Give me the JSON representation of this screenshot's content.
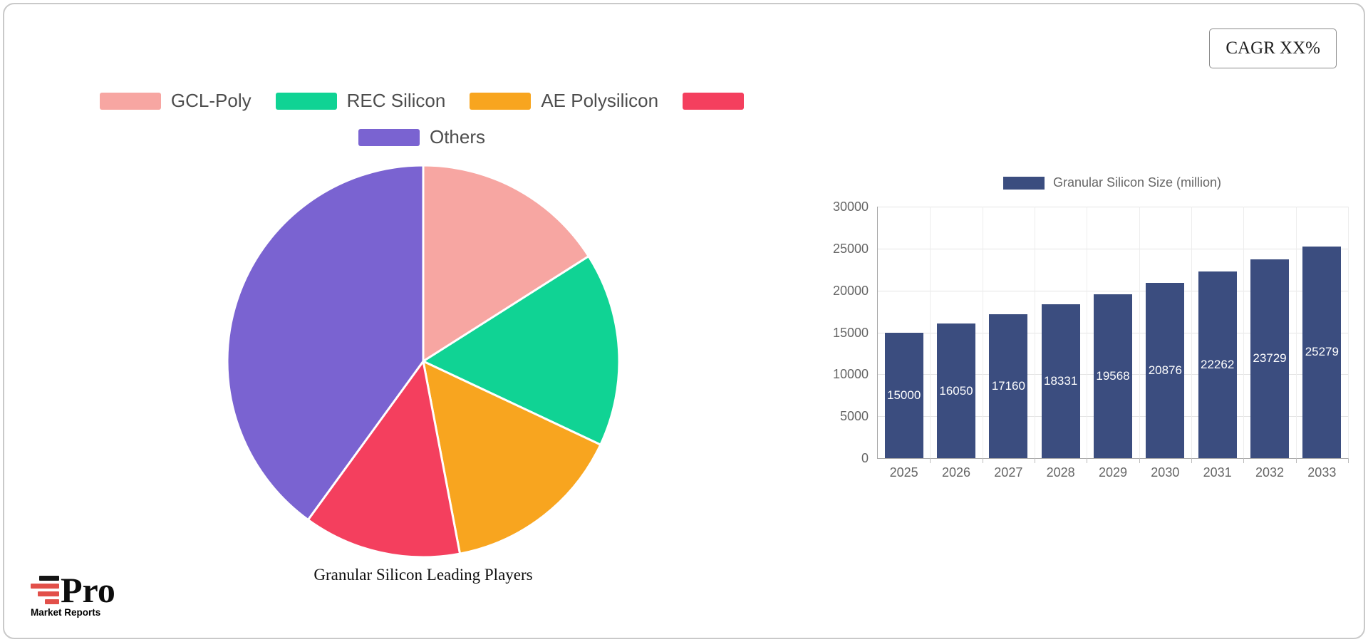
{
  "cagr": {
    "label": "CAGR XX%"
  },
  "logo": {
    "title": "Pro",
    "subtitle": "Market Reports"
  },
  "chart_data": [
    {
      "type": "pie",
      "title": "Granular Silicon Leading Players",
      "legend_position": "top",
      "slices": [
        {
          "label": "GCL-Poly",
          "value": 16,
          "color": "#f7a6a2"
        },
        {
          "label": "REC Silicon",
          "value": 16,
          "color": "#10d394"
        },
        {
          "label": "AE Polysilicon",
          "value": 15,
          "color": "#f8a51f"
        },
        {
          "label": "",
          "value": 13,
          "color": "#f43f5e"
        },
        {
          "label": "Others",
          "value": 40,
          "color": "#7a63d1"
        }
      ]
    },
    {
      "type": "bar",
      "series": [
        {
          "name": "Granular Silicon Size (million)",
          "values": [
            15000,
            16050,
            17160,
            18331,
            19568,
            20876,
            22262,
            23729,
            25279
          ]
        }
      ],
      "categories": [
        "2025",
        "2026",
        "2027",
        "2028",
        "2029",
        "2030",
        "2031",
        "2032",
        "2033"
      ],
      "ylim": [
        0,
        30000
      ],
      "yticks": [
        0,
        5000,
        10000,
        15000,
        20000,
        25000,
        30000
      ],
      "bar_color": "#3b4d7f",
      "value_label_color": "#ffffff",
      "grid": true,
      "legend_position": "top"
    }
  ]
}
